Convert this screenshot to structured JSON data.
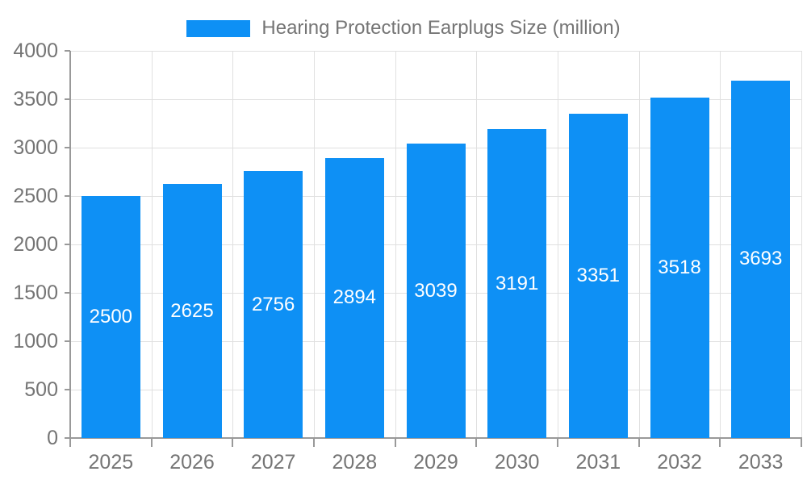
{
  "legend": {
    "label": "Hearing Protection Earplugs Size (million)"
  },
  "colors": {
    "bar": "#0e90f5",
    "grid_line": "#e0e0e0",
    "axis_line": "#999999",
    "tick_label": "#757575",
    "bar_label": "#ffffff",
    "background": "#ffffff"
  },
  "chart_data": {
    "type": "bar",
    "title": "Hearing Protection Earplugs Size (million)",
    "series_name": "Hearing Protection Earplugs Size (million)",
    "categories": [
      "2025",
      "2026",
      "2027",
      "2028",
      "2029",
      "2030",
      "2031",
      "2032",
      "2033"
    ],
    "values": [
      2500,
      2625,
      2756,
      2894,
      3039,
      3191,
      3351,
      3518,
      3693
    ],
    "xlabel": "",
    "ylabel": "",
    "ylim": [
      0,
      4000
    ],
    "yticks": [
      0,
      500,
      1000,
      1500,
      2000,
      2500,
      3000,
      3500,
      4000
    ],
    "grid": true,
    "legend_position": "top",
    "bar_labels_visible": true,
    "bar_label_placement": "center"
  }
}
